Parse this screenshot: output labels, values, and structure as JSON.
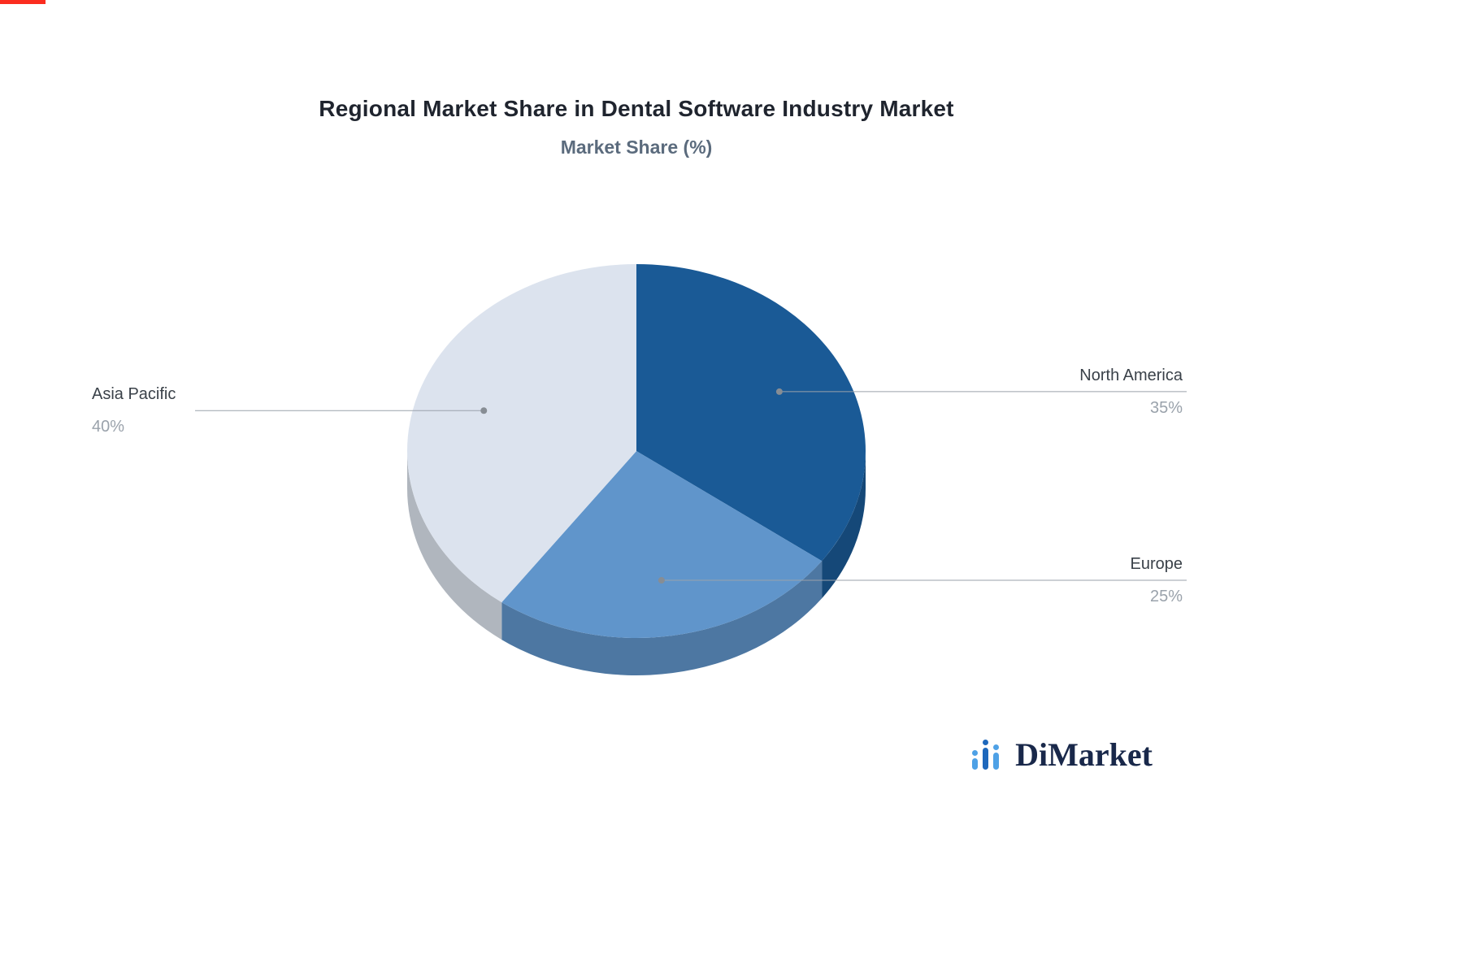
{
  "page": {
    "background_color": "#ffffff",
    "top_accent_color": "#fb2c1f"
  },
  "chart_data": {
    "type": "pie",
    "style": "3d",
    "title": "Regional Market Share in Dental Software Industry Market",
    "subtitle": "Market Share (%)",
    "unit": "%",
    "start_angle_deg": -90,
    "direction": "clockwise",
    "legend_position": "none",
    "labels": "leader-lines",
    "slices": [
      {
        "label": "North America",
        "value": 35,
        "color": "#1a5a96",
        "label_side": "right"
      },
      {
        "label": "Europe",
        "value": 25,
        "color": "#6095cb",
        "label_side": "right"
      },
      {
        "label": "Asia Pacific",
        "value": 40,
        "color": "#dce3ee",
        "label_side": "left"
      }
    ],
    "label_text_color": "#3a4149",
    "label_value_color": "#9aa2ab",
    "leader_line_color": "#9aa2ab",
    "leader_dot_color": "#878d94"
  },
  "branding": {
    "logo_text": "DiMarket",
    "logo_text_color": "#19284a",
    "icon_colors": [
      "#4ea1e6",
      "#1e68bc"
    ]
  }
}
